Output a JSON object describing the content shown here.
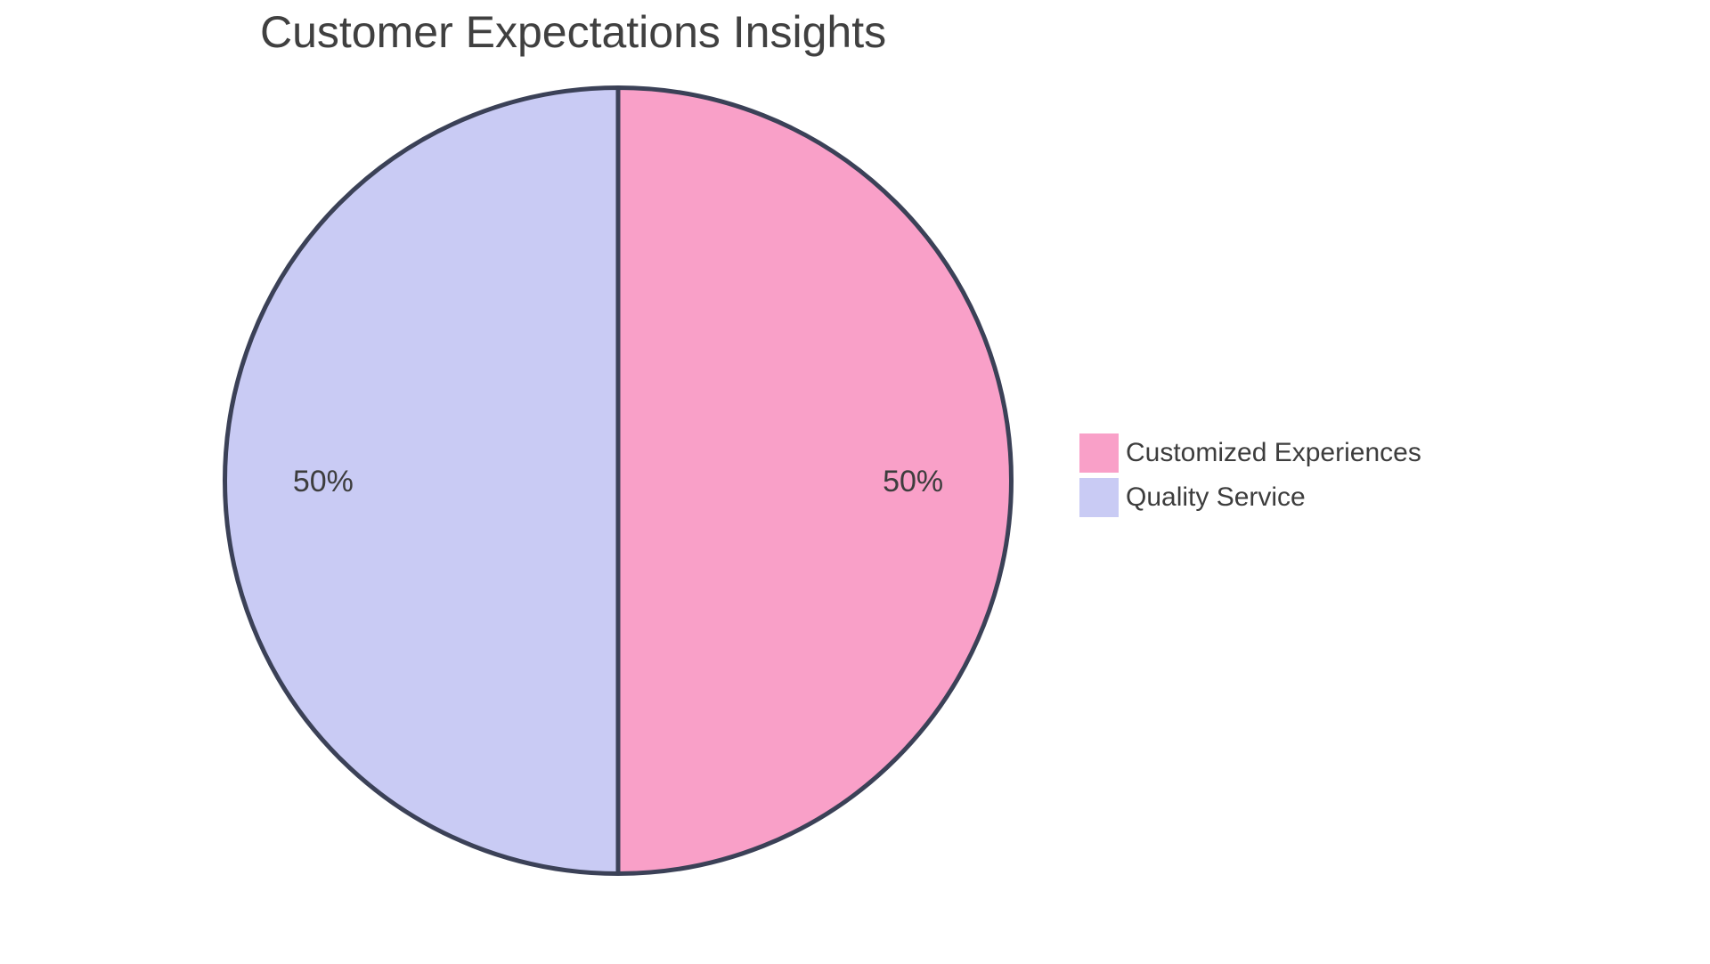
{
  "chart_data": {
    "type": "pie",
    "title": "Customer Expectations Insights",
    "labels": [
      "Customized Experiences",
      "Quality Service"
    ],
    "values": [
      50,
      50
    ],
    "slice_labels": [
      "50%",
      "50%"
    ],
    "colors": [
      "#F9A0C8",
      "#C9CBF4"
    ],
    "slice_border_color": "#3B4157",
    "slice_border_width": 5,
    "start_position": "top",
    "direction": "clockwise",
    "legend_position": "right",
    "background_color": "#FFFFFF",
    "title_color": "#404040",
    "label_color": "#3D3D3D"
  }
}
